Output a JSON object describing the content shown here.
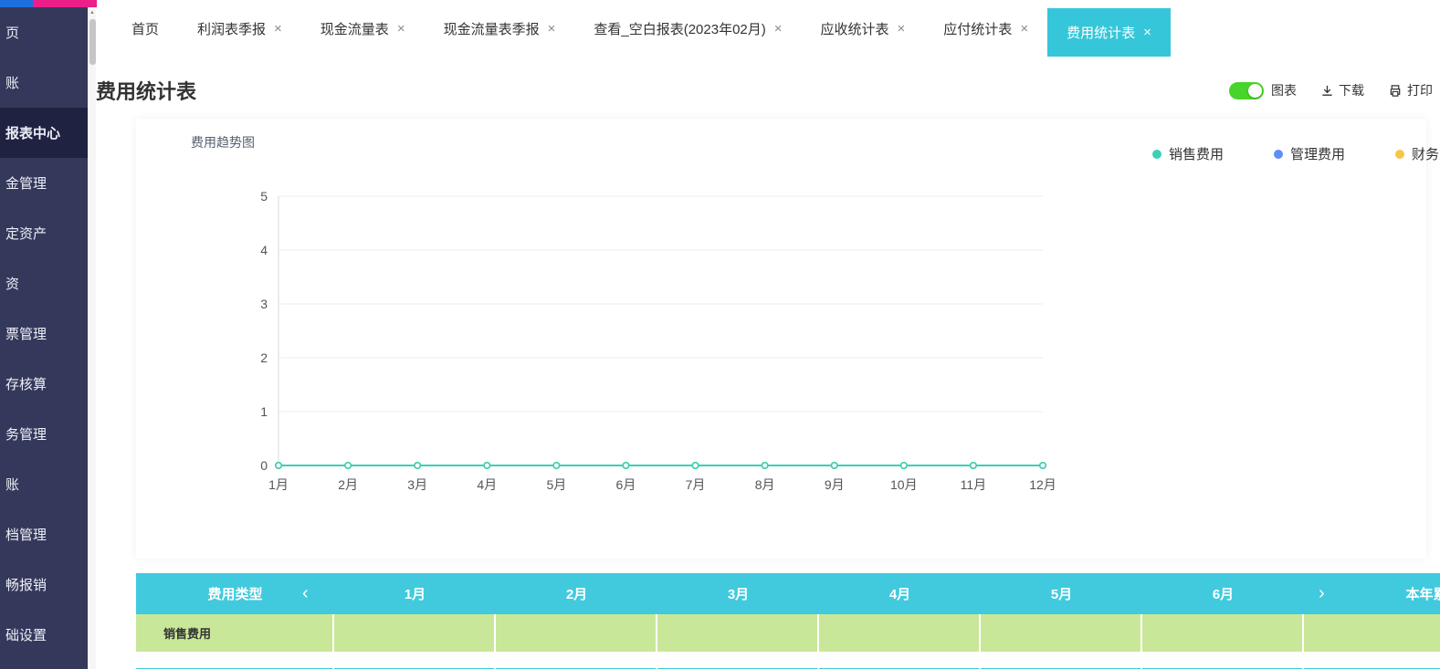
{
  "colors": {
    "accent_cyan": "#35c6da",
    "table_header_cyan": "#41cade",
    "row_green": "#c9e798",
    "sidebar_bg": "#34385a",
    "sidebar_active_bg": "#1f2240",
    "toggle_on_green": "#48d42a",
    "top_strip_blue": "#1d6fe0",
    "top_strip_pink": "#ec1e8a"
  },
  "sidebar": {
    "items": [
      {
        "label": "页",
        "active": false
      },
      {
        "label": "账",
        "active": false
      },
      {
        "label": "报表中心",
        "active": true
      },
      {
        "label": "金管理",
        "active": false
      },
      {
        "label": "定资产",
        "active": false
      },
      {
        "label": "资",
        "active": false
      },
      {
        "label": "票管理",
        "active": false
      },
      {
        "label": "存核算",
        "active": false
      },
      {
        "label": "务管理",
        "active": false
      },
      {
        "label": "账",
        "active": false
      },
      {
        "label": "档管理",
        "active": false
      },
      {
        "label": "畅报销",
        "active": false
      },
      {
        "label": "础设置",
        "active": false
      }
    ]
  },
  "tabs": [
    {
      "label": "首页",
      "closable": false,
      "active": false
    },
    {
      "label": "利润表季报",
      "closable": true,
      "active": false
    },
    {
      "label": "现金流量表",
      "closable": true,
      "active": false
    },
    {
      "label": "现金流量表季报",
      "closable": true,
      "active": false
    },
    {
      "label": "查看_空白报表(2023年02月)",
      "closable": true,
      "active": false
    },
    {
      "label": "应收统计表",
      "closable": true,
      "active": false
    },
    {
      "label": "应付统计表",
      "closable": true,
      "active": false
    },
    {
      "label": "费用统计表",
      "closable": true,
      "active": true
    }
  ],
  "page": {
    "title": "费用统计表",
    "toolbar": {
      "toggle_label": "图表",
      "toggle_state": "on",
      "download_label": "下载",
      "print_label": "打印"
    }
  },
  "chart_data": {
    "type": "line",
    "title": "费用趋势图",
    "categories": [
      "1月",
      "2月",
      "3月",
      "4月",
      "5月",
      "6月",
      "7月",
      "8月",
      "9月",
      "10月",
      "11月",
      "12月"
    ],
    "series": [
      {
        "name": "销售费用",
        "color": "#3ad1b4",
        "values": [
          0,
          0,
          0,
          0,
          0,
          0,
          0,
          0,
          0,
          0,
          0,
          0
        ]
      },
      {
        "name": "管理费用",
        "color": "#5f8ff7",
        "values": [
          0,
          0,
          0,
          0,
          0,
          0,
          0,
          0,
          0,
          0,
          0,
          0
        ]
      },
      {
        "name": "财务费用",
        "color": "#f6c64a",
        "values": [
          0,
          0,
          0,
          0,
          0,
          0,
          0,
          0,
          0,
          0,
          0,
          0
        ]
      }
    ],
    "ylim": [
      0,
      5
    ],
    "yticks": [
      0,
      1,
      2,
      3,
      4,
      5
    ],
    "grid": true,
    "legend_position": "top-right"
  },
  "table": {
    "header": [
      "费用类型",
      "1月",
      "2月",
      "3月",
      "4月",
      "5月",
      "6月",
      "本年累计"
    ],
    "nav_prev": "‹",
    "nav_next": "›",
    "rows": [
      {
        "cells": [
          "销售费用",
          "",
          "",
          "",
          "",
          "",
          "",
          ""
        ]
      },
      {
        "cells": [
          "",
          "",
          "",
          "",
          "",
          "",
          "",
          ""
        ]
      }
    ]
  },
  "icons": {
    "toggle": "toggle-on-icon",
    "download": "download-icon",
    "print": "printer-icon",
    "tab_close": "close-icon",
    "prev": "chevron-left-icon",
    "next": "chevron-right-icon",
    "scroll_up": "scroll-up-arrow-icon"
  }
}
